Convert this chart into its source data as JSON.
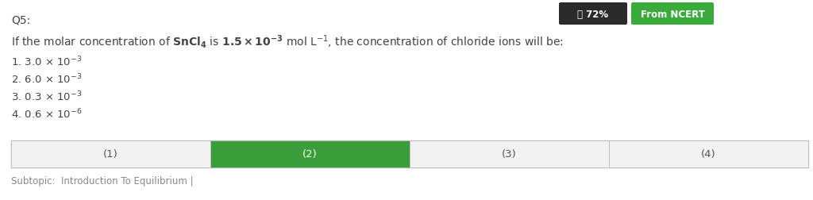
{
  "bg_color": "#ffffff",
  "question_label": "Q5:",
  "question_label_color": "#444444",
  "question_label_fontsize": 10,
  "option_labels": [
    "(1)",
    "(2)",
    "(3)",
    "(4)"
  ],
  "bar_colors": [
    "#f2f2f2",
    "#3a9e3a",
    "#f2f2f2",
    "#f2f2f2"
  ],
  "bar_text_colors": [
    "#555555",
    "#ffffff",
    "#555555",
    "#555555"
  ],
  "bar_border_color": "#bbbbbb",
  "subtopic_text": "Subtopic:  Introduction To Equilibrium |",
  "subtopic_color": "#888888",
  "subtopic_fontsize": 8.5,
  "percent_badge_bg": "#2b2b2b",
  "percent_badge_color": "#ffffff",
  "ncert_badge_bg": "#3aaa3a",
  "ncert_badge_color": "#ffffff",
  "badge_fontsize": 8.5,
  "text_fontsize": 10,
  "option_fontsize": 9.5,
  "bar_fontsize": 9.5,
  "text_color": "#444444"
}
